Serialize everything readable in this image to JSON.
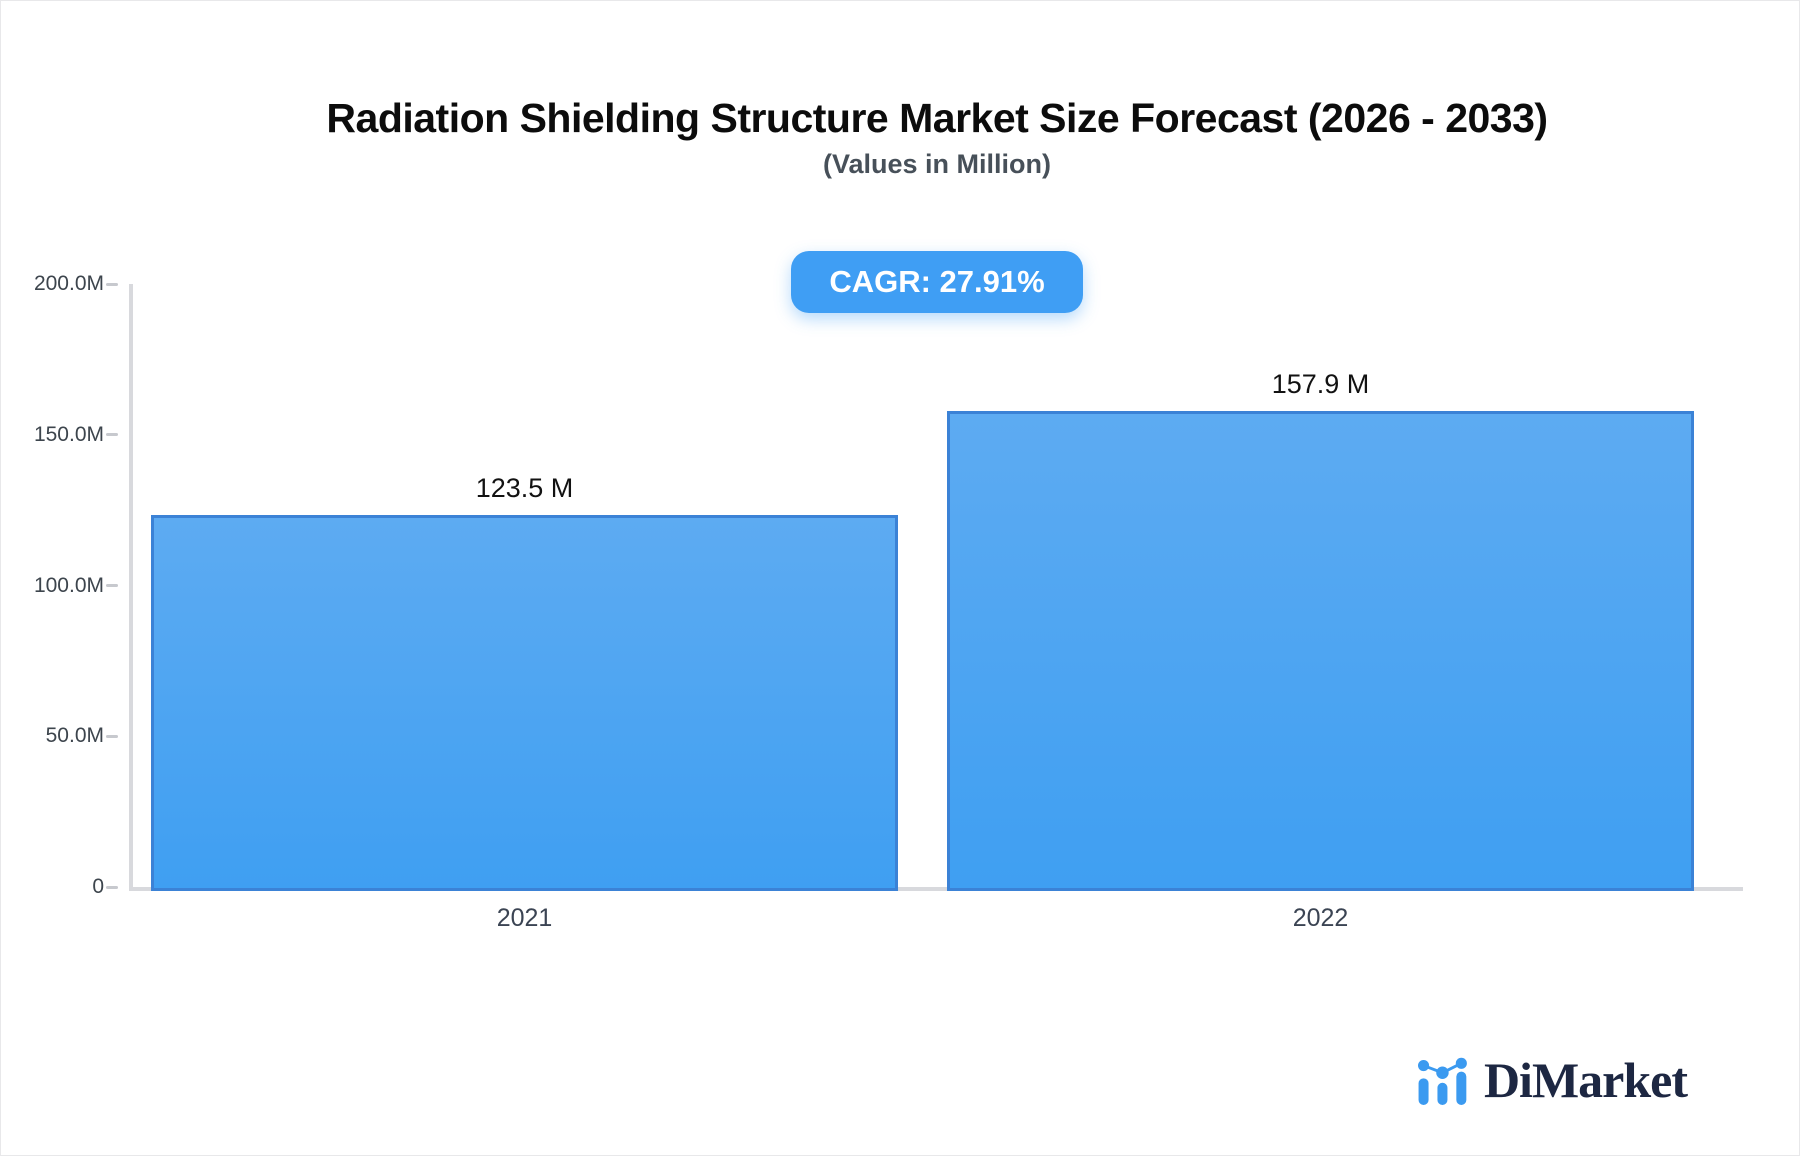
{
  "header": {
    "title": "Radiation Shielding Structure Market Size Forecast (2026 - 2033)",
    "subtitle": "(Values in Million)",
    "cagr_badge": "CAGR: 27.91%"
  },
  "chart_data": {
    "type": "bar",
    "title": "Radiation Shielding Structure Market Size Forecast (2026 - 2033)",
    "subtitle": "(Values in Million)",
    "categories": [
      "2021",
      "2022"
    ],
    "values": [
      123.5,
      157.9
    ],
    "value_labels": [
      "123.5 M",
      "157.9 M"
    ],
    "xlabel": "",
    "ylabel": "",
    "ylim": [
      0,
      200
    ],
    "yticks": [
      0,
      50,
      100,
      150,
      200
    ],
    "ytick_labels": [
      "0",
      "50.0M",
      "100.0M",
      "150.0M",
      "200.0M"
    ],
    "grid": false,
    "legend": "none",
    "colors": {
      "bar_gradient_top": "#5dabf2",
      "bar_gradient_bottom": "#3f9ff2",
      "bar_border": "#3b82d6",
      "axis_line": "#d8d9dd",
      "badge_background": "#3f9ef4"
    }
  },
  "logo": {
    "text": "DiMarket",
    "icon": "bar-chart-logo-icon",
    "accent_color": "#3b9af0",
    "text_color": "#1d2742"
  }
}
